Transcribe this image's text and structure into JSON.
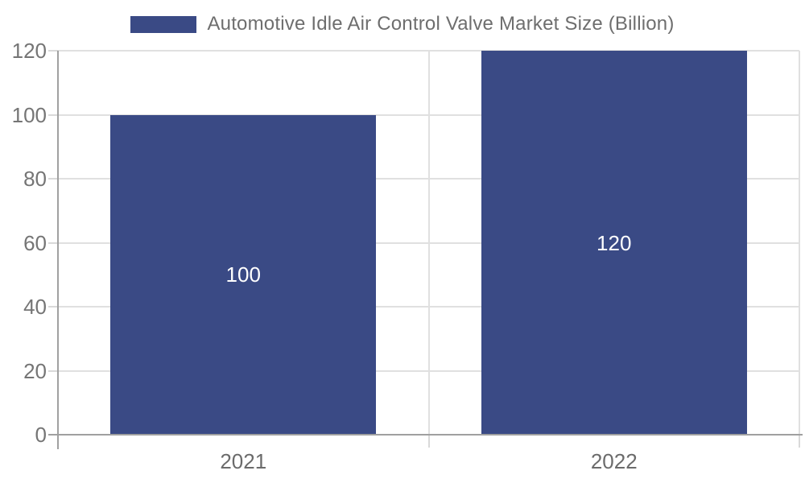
{
  "chart_data": {
    "type": "bar",
    "title": "Automotive Idle Air Control Valve Market Size (Billion)",
    "categories": [
      "2021",
      "2022"
    ],
    "values": [
      100,
      120
    ],
    "xlabel": "",
    "ylabel": "",
    "ylim": [
      0,
      120
    ],
    "ytick_step": 20,
    "ytick_labels": [
      "0",
      "20",
      "40",
      "60",
      "80",
      "100",
      "120"
    ],
    "grid": true,
    "legend_position": "top-center",
    "colors": {
      "bar": "#3a4a85",
      "grid": "#e0e0e0",
      "axis": "#a0a0a0",
      "tick_stub": "#d9d9d9",
      "y_label": "#757575",
      "x_label": "#6b6b6b",
      "bar_label": "#ffffff",
      "legend_text": "#6e6e6e"
    }
  }
}
